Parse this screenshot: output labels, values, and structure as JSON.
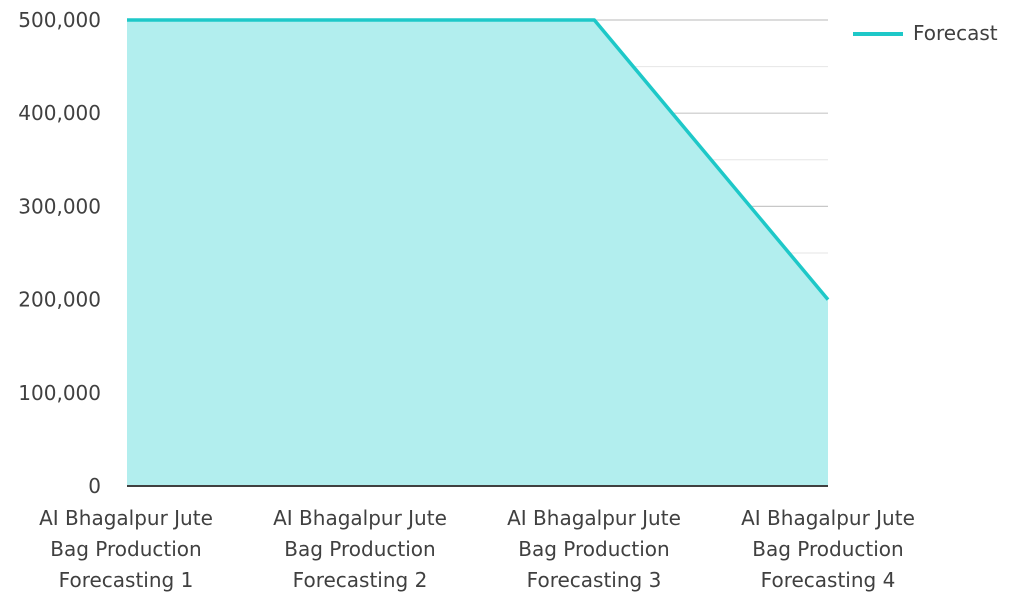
{
  "chart_data": {
    "type": "area",
    "title": "",
    "xlabel": "",
    "ylabel": "",
    "categories": [
      "AI Bhagalpur Jute Bag Production Forecasting 1",
      "AI Bhagalpur Jute Bag Production Forecasting 2",
      "AI Bhagalpur Jute Bag Production Forecasting 3",
      "AI Bhagalpur Jute Bag Production Forecasting 4"
    ],
    "category_label_lines": [
      [
        "AI Bhagalpur Jute",
        "Bag Production",
        "Forecasting 1"
      ],
      [
        "AI Bhagalpur Jute",
        "Bag Production",
        "Forecasting 2"
      ],
      [
        "AI Bhagalpur Jute",
        "Bag Production",
        "Forecasting 3"
      ],
      [
        "AI Bhagalpur Jute",
        "Bag Production",
        "Forecasting 4"
      ]
    ],
    "series": [
      {
        "name": "Forecast",
        "values": [
          500000,
          500000,
          500000,
          200000
        ],
        "line_color": "#1ec8c8",
        "fill_color": "#b2eeee"
      }
    ],
    "ylim": [
      0,
      500000
    ],
    "yticks": [
      0,
      100000,
      200000,
      300000,
      400000,
      500000
    ],
    "ytick_labels": [
      "0",
      "100,000",
      "200,000",
      "300,000",
      "400,000",
      "500,000"
    ],
    "grid": true,
    "legend_position": "top-right"
  }
}
